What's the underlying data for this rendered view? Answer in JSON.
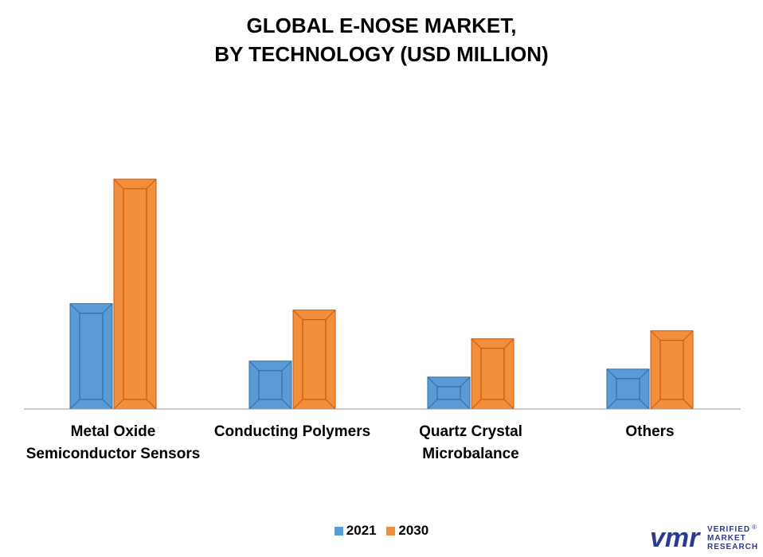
{
  "chart_data": {
    "type": "bar",
    "title_lines": [
      "GLOBAL E-NOSE MARKET,",
      "BY TECHNOLOGY (USD MILLION)"
    ],
    "categories": [
      [
        "Metal Oxide",
        "Semiconductor Sensors"
      ],
      [
        "Conducting Polymers"
      ],
      [
        "Quartz Crystal",
        "Microbalance"
      ],
      [
        "Others"
      ]
    ],
    "series": [
      {
        "name": "2021",
        "values": [
          33,
          15,
          10,
          12.5
        ],
        "color": "#5b9bd5",
        "dark": "#2e6da4"
      },
      {
        "name": "2030",
        "values": [
          72,
          31,
          22,
          24.5
        ],
        "color": "#f28e3c",
        "dark": "#c45a10"
      }
    ],
    "ylim": [
      0,
      80
    ],
    "grid": false,
    "legend_position": "bottom"
  },
  "brand": {
    "logo_text": "vmr",
    "lines": [
      "VERIFIED",
      "MARKET",
      "RESEARCH"
    ],
    "registered": "®",
    "color": "#2b3a8f"
  }
}
